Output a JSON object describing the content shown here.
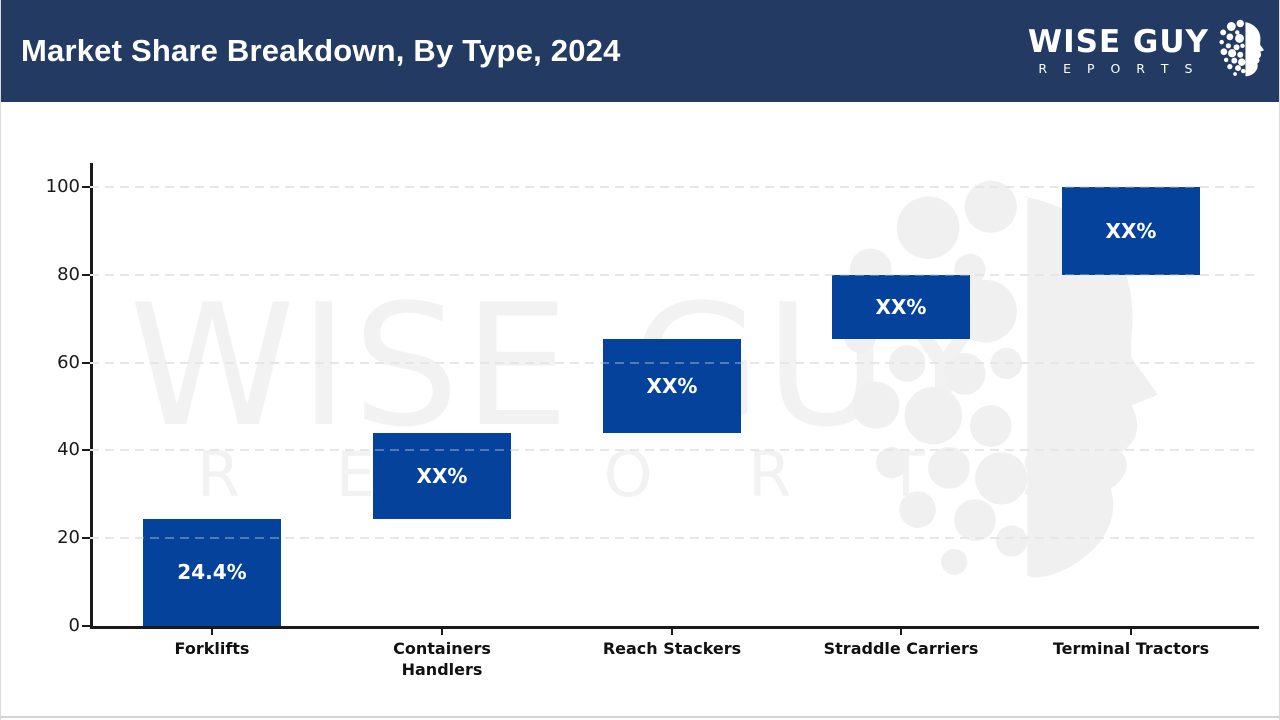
{
  "header": {
    "title": "Market Share Breakdown, By Type, 2024",
    "logo": {
      "name": "WISE GUY",
      "subtitle": "R E P O R T S"
    }
  },
  "watermark": {
    "line1": "WISE GUY",
    "line2": "R E P O R T S"
  },
  "colors": {
    "header_bg": "#233a63",
    "bar": "#05429b",
    "bar_label": "#ffffff",
    "grid": "#dcdcdc",
    "axis": "#1a1a1a",
    "watermark": "#f2f2f2"
  },
  "chart_data": {
    "type": "bar",
    "subtype": "waterfall",
    "title": "Market Share Breakdown, By Type, 2024",
    "xlabel": "",
    "ylabel": "",
    "categories": [
      "Forklifts",
      "Containers Handlers",
      "Reach Stackers",
      "Straddle Carriers",
      "Terminal Tractors"
    ],
    "bars": [
      {
        "category": "Forklifts",
        "start": 0,
        "end": 24.4,
        "value": 24.4,
        "label": "24.4%"
      },
      {
        "category": "Containers Handlers",
        "start": 24.4,
        "end": 44.0,
        "value": 19.6,
        "label": "XX%"
      },
      {
        "category": "Reach Stackers",
        "start": 44.0,
        "end": 65.3,
        "value": 21.3,
        "label": "XX%"
      },
      {
        "category": "Straddle Carriers",
        "start": 65.3,
        "end": 80.0,
        "value": 14.7,
        "label": "XX%"
      },
      {
        "category": "Terminal Tractors",
        "start": 80.0,
        "end": 100.0,
        "value": 20.0,
        "label": "XX%"
      }
    ],
    "yticks": [
      0,
      20,
      40,
      60,
      80,
      100
    ],
    "ylim": [
      0,
      105
    ],
    "grid": {
      "axis": "y",
      "style": "dashed"
    },
    "legend": null
  }
}
